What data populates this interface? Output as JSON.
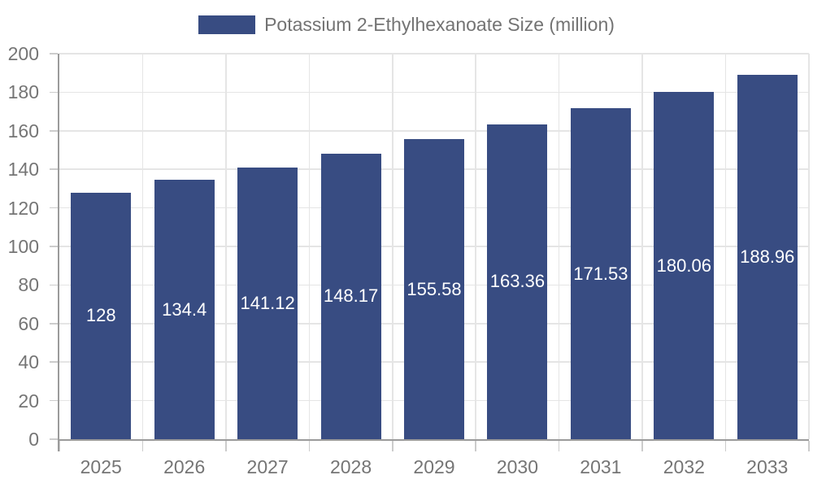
{
  "legend": {
    "series_label": "Potassium 2-Ethylhexanoate Size (million)"
  },
  "chart_data": {
    "type": "bar",
    "title": "Potassium 2-Ethylhexanoate Size (million)",
    "categories": [
      "2025",
      "2026",
      "2027",
      "2028",
      "2029",
      "2030",
      "2031",
      "2032",
      "2033"
    ],
    "values": [
      128,
      134.4,
      141.12,
      148.17,
      155.58,
      163.36,
      171.53,
      180.06,
      188.96
    ],
    "value_labels": [
      "128",
      "134.4",
      "141.12",
      "148.17",
      "155.58",
      "163.36",
      "171.53",
      "180.06",
      "188.96"
    ],
    "series": [
      {
        "name": "Potassium 2-Ethylhexanoate Size (million)",
        "values": [
          128,
          134.4,
          141.12,
          148.17,
          155.58,
          163.36,
          171.53,
          180.06,
          188.96
        ]
      }
    ],
    "xlabel": "",
    "ylabel": "",
    "ylim": [
      0,
      200
    ],
    "ytick_step": 20,
    "ytick_labels": [
      "0",
      "20",
      "40",
      "60",
      "80",
      "100",
      "120",
      "140",
      "160",
      "180",
      "200"
    ],
    "grid": true,
    "legend_position": "top-center",
    "colors": {
      "bar": "#384C82",
      "bar_label": "#FFFFFF",
      "axis_text": "#757575",
      "legend_text": "#737373",
      "gridline": "#E5E5E5",
      "axis_line": "#9B9B9B",
      "tick": "#CCCCCC",
      "background": "#FFFFFF"
    }
  }
}
